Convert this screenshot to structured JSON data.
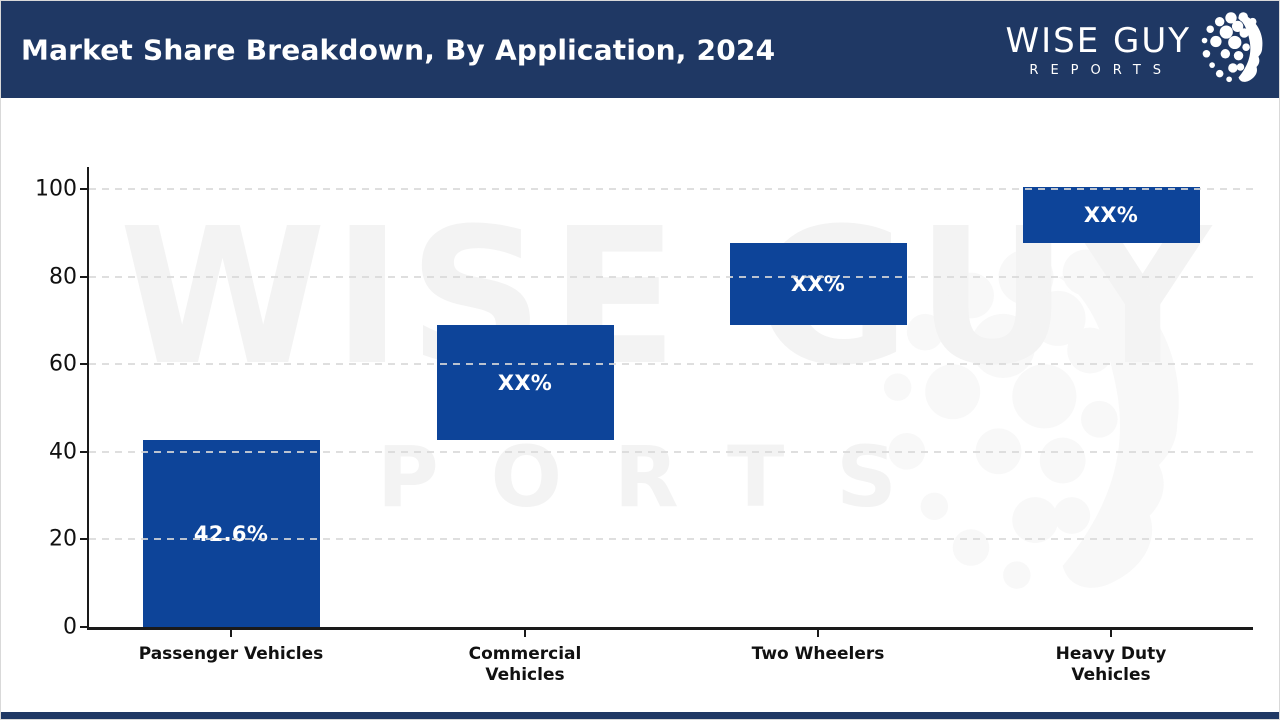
{
  "header": {
    "title": "Market Share Breakdown, By Application, 2024",
    "bg_color": "#1f3864"
  },
  "logo": {
    "line1": "WISE GUY",
    "line2": "REPORTS"
  },
  "watermark": {
    "line1": "WISE GUY",
    "line2": "REPORTS"
  },
  "chart_data": {
    "type": "bar",
    "subtype": "waterfall",
    "title": "Market Share Breakdown, By Application, 2024",
    "categories": [
      "Passenger Vehicles",
      "Commercial\nVehicles",
      "Two Wheelers",
      "Heavy Duty\nVehicles"
    ],
    "bars": [
      {
        "category": "Passenger Vehicles",
        "start": 0,
        "end": 42.6,
        "label": "42.6%"
      },
      {
        "category": "Commercial Vehicles",
        "start": 42.6,
        "end": 69,
        "label": "XX%"
      },
      {
        "category": "Two Wheelers",
        "start": 69,
        "end": 87.7,
        "label": "XX%"
      },
      {
        "category": "Heavy Duty Vehicles",
        "start": 87.7,
        "end": 100.5,
        "label": "XX%"
      }
    ],
    "yticks": [
      0,
      20,
      40,
      60,
      80,
      100
    ],
    "ylim": [
      0,
      105
    ],
    "xlabel": "",
    "ylabel": "",
    "grid": "horizontal-dashed",
    "legend": "none",
    "bar_color": "#0d4499",
    "bar_label_color": "#ffffff",
    "axis_color": "#1a1a1a",
    "grid_color": "#d9d9d9"
  }
}
